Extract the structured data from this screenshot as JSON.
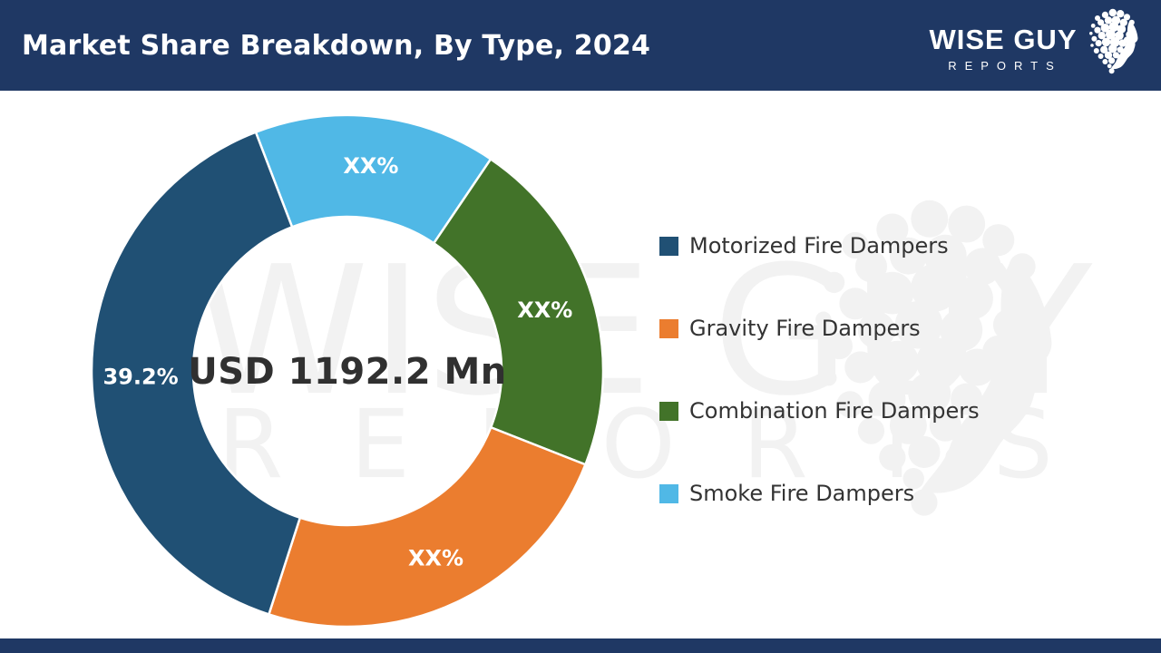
{
  "header": {
    "title": "Market Share Breakdown, By Type, 2024",
    "background": "#1F3864",
    "title_color": "#FFFFFF",
    "logo": {
      "line1": "WISE GUY",
      "line2": "REPORTS"
    }
  },
  "footer": {
    "background": "#1F3864"
  },
  "watermark": {
    "line1": "WISE GUY",
    "line2": "REPORTS",
    "color": "#F2F2F2"
  },
  "chart_data": {
    "type": "pie",
    "subtype": "donut",
    "title": "Market Share Breakdown, By Type, 2024",
    "center_label": "USD 1192.2 Mn",
    "legend_position": "right",
    "start_angle_deg_clockwise_from_12": -21,
    "series": [
      {
        "label": "Motorized Fire Dampers",
        "value": 39.2,
        "display": "39.2%",
        "color": "#205074"
      },
      {
        "label": "Gravity Fire Dampers",
        "value": 24.0,
        "display": "XX%",
        "color": "#EB7D2F"
      },
      {
        "label": "Combination Fire Dampers",
        "value": 21.5,
        "display": "XX%",
        "color": "#427329"
      },
      {
        "label": "Smoke Fire Dampers",
        "value": 15.3,
        "display": "XX%",
        "color": "#50B8E6"
      }
    ],
    "label_color": "#FFFFFF",
    "center_label_color": "#303030",
    "legend_text_color": "#333333"
  }
}
